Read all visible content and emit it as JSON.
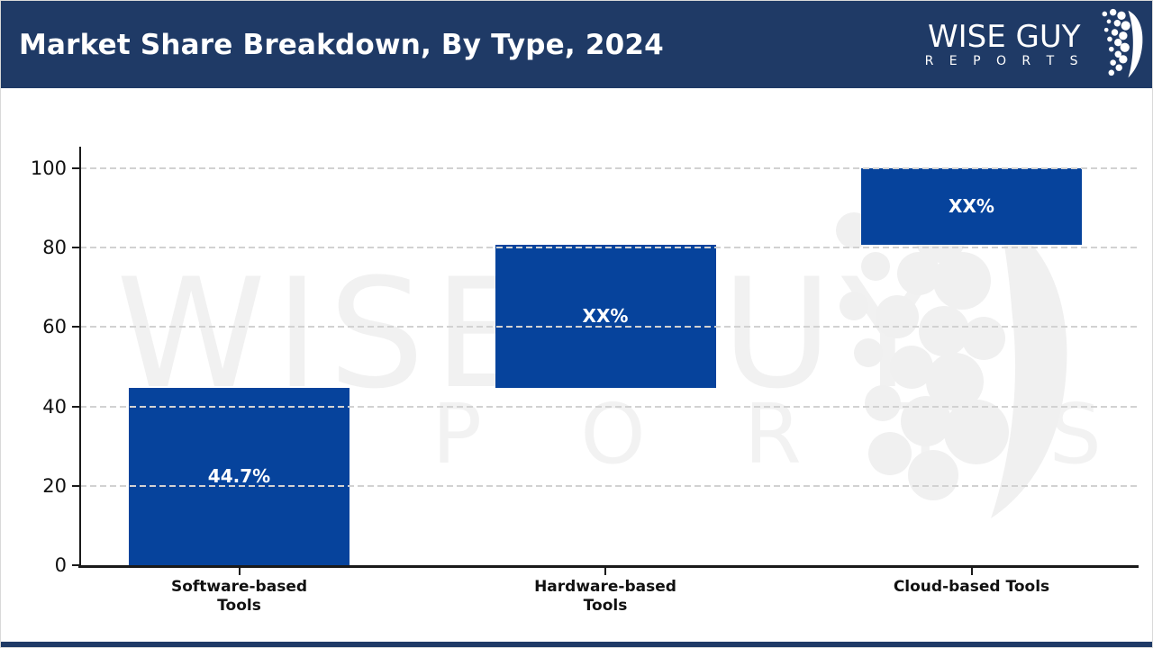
{
  "header": {
    "title": "Market Share Breakdown, By Type, 2024",
    "logo": {
      "wordmark": "WISE GUY",
      "subtitle": "R E P O R T S"
    }
  },
  "watermark": {
    "line1": "WISE GUY",
    "line2": "R E P O R T S"
  },
  "chart_data": {
    "type": "bar",
    "subtype": "waterfall",
    "title": "Market Share Breakdown, By Type, 2024",
    "categories": [
      "Software-based\nTools",
      "Hardware-based\nTools",
      "Cloud-based Tools"
    ],
    "segments": [
      {
        "category": "Software-based Tools",
        "start": 0,
        "end": 44.7,
        "label": "44.7%"
      },
      {
        "category": "Hardware-based Tools",
        "start": 44.7,
        "end": 80.7,
        "label": "XX%"
      },
      {
        "category": "Cloud-based Tools",
        "start": 80.7,
        "end": 100,
        "label": "XX%"
      }
    ],
    "yticks": [
      0,
      20,
      40,
      60,
      80,
      100
    ],
    "ylim": [
      0,
      105.4
    ],
    "grid": true,
    "legend": false,
    "bar_color": "#06439c",
    "bar_label_color": "#ffffff",
    "axis_color": "#1a1a1a",
    "grid_color": "#d2d2d2"
  },
  "colors": {
    "header_bg": "#1f3a66",
    "footer_bg": "#1f3a66",
    "bar": "#06439c",
    "watermark": "#f1f1f1"
  }
}
